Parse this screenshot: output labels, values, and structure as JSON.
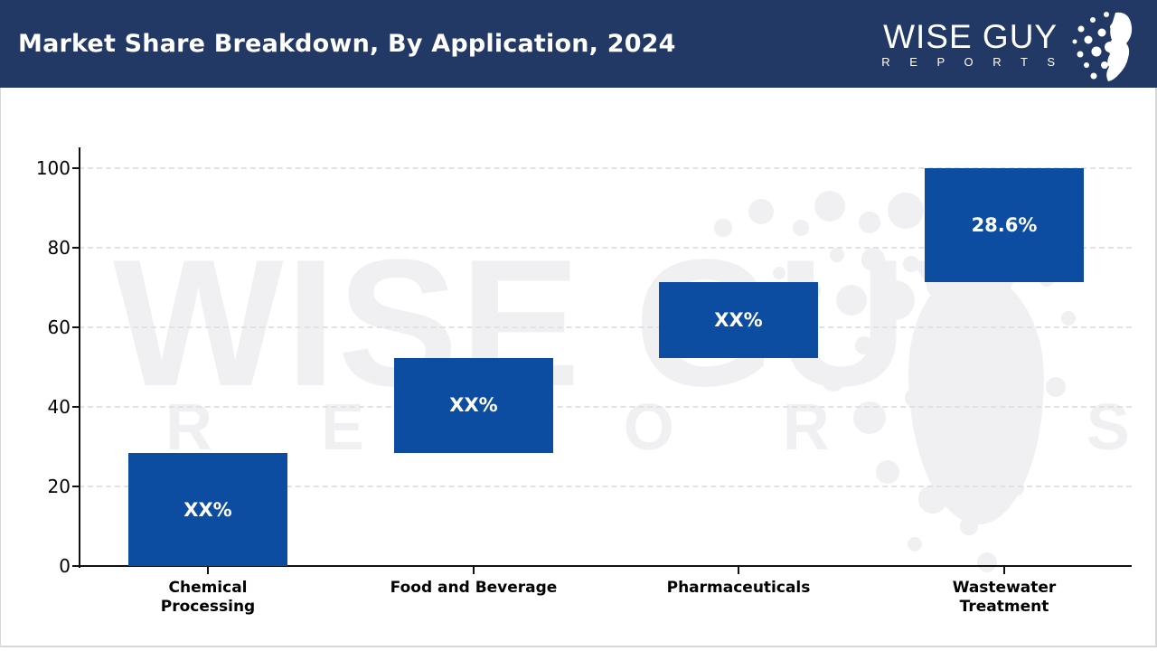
{
  "header": {
    "title": "Market Share Breakdown, By Application, 2024",
    "logo": {
      "line1": "WISE GUY",
      "line2": "R E P O R T S"
    }
  },
  "watermark": {
    "line1": "WISE GUY",
    "line2": "REPORTS"
  },
  "colors": {
    "header_bg": "#223865",
    "bar_fill": "#0c4da2",
    "bar_label": "#ffffff",
    "axis": "#111111",
    "gridline": "#e2e2e2",
    "watermark": "#f0f0f3"
  },
  "chart_data": {
    "type": "bar",
    "subtype": "waterfall",
    "title": "Market Share Breakdown, By Application, 2024",
    "categories": [
      "Chemical\nProcessing",
      "Food and Beverage",
      "Pharmaceuticals",
      "Wastewater\nTreatment"
    ],
    "segments": [
      {
        "category": "Chemical Processing",
        "start": 0,
        "end": 28.4,
        "height": 28.4,
        "value_label": "XX%"
      },
      {
        "category": "Food and Beverage",
        "start": 28.4,
        "end": 52.3,
        "height": 23.9,
        "value_label": "XX%"
      },
      {
        "category": "Pharmaceuticals",
        "start": 52.3,
        "end": 71.4,
        "height": 19.1,
        "value_label": "XX%"
      },
      {
        "category": "Wastewater Treatment",
        "start": 71.4,
        "end": 100,
        "height": 28.6,
        "value_label": "28.6%"
      }
    ],
    "yticks": [
      0,
      20,
      40,
      60,
      80,
      100
    ],
    "ylim": [
      0,
      105
    ],
    "xlabel": "",
    "ylabel": "",
    "grid": "horizontal-dashed",
    "legend": "none",
    "bar_color": "#0c4da2"
  }
}
